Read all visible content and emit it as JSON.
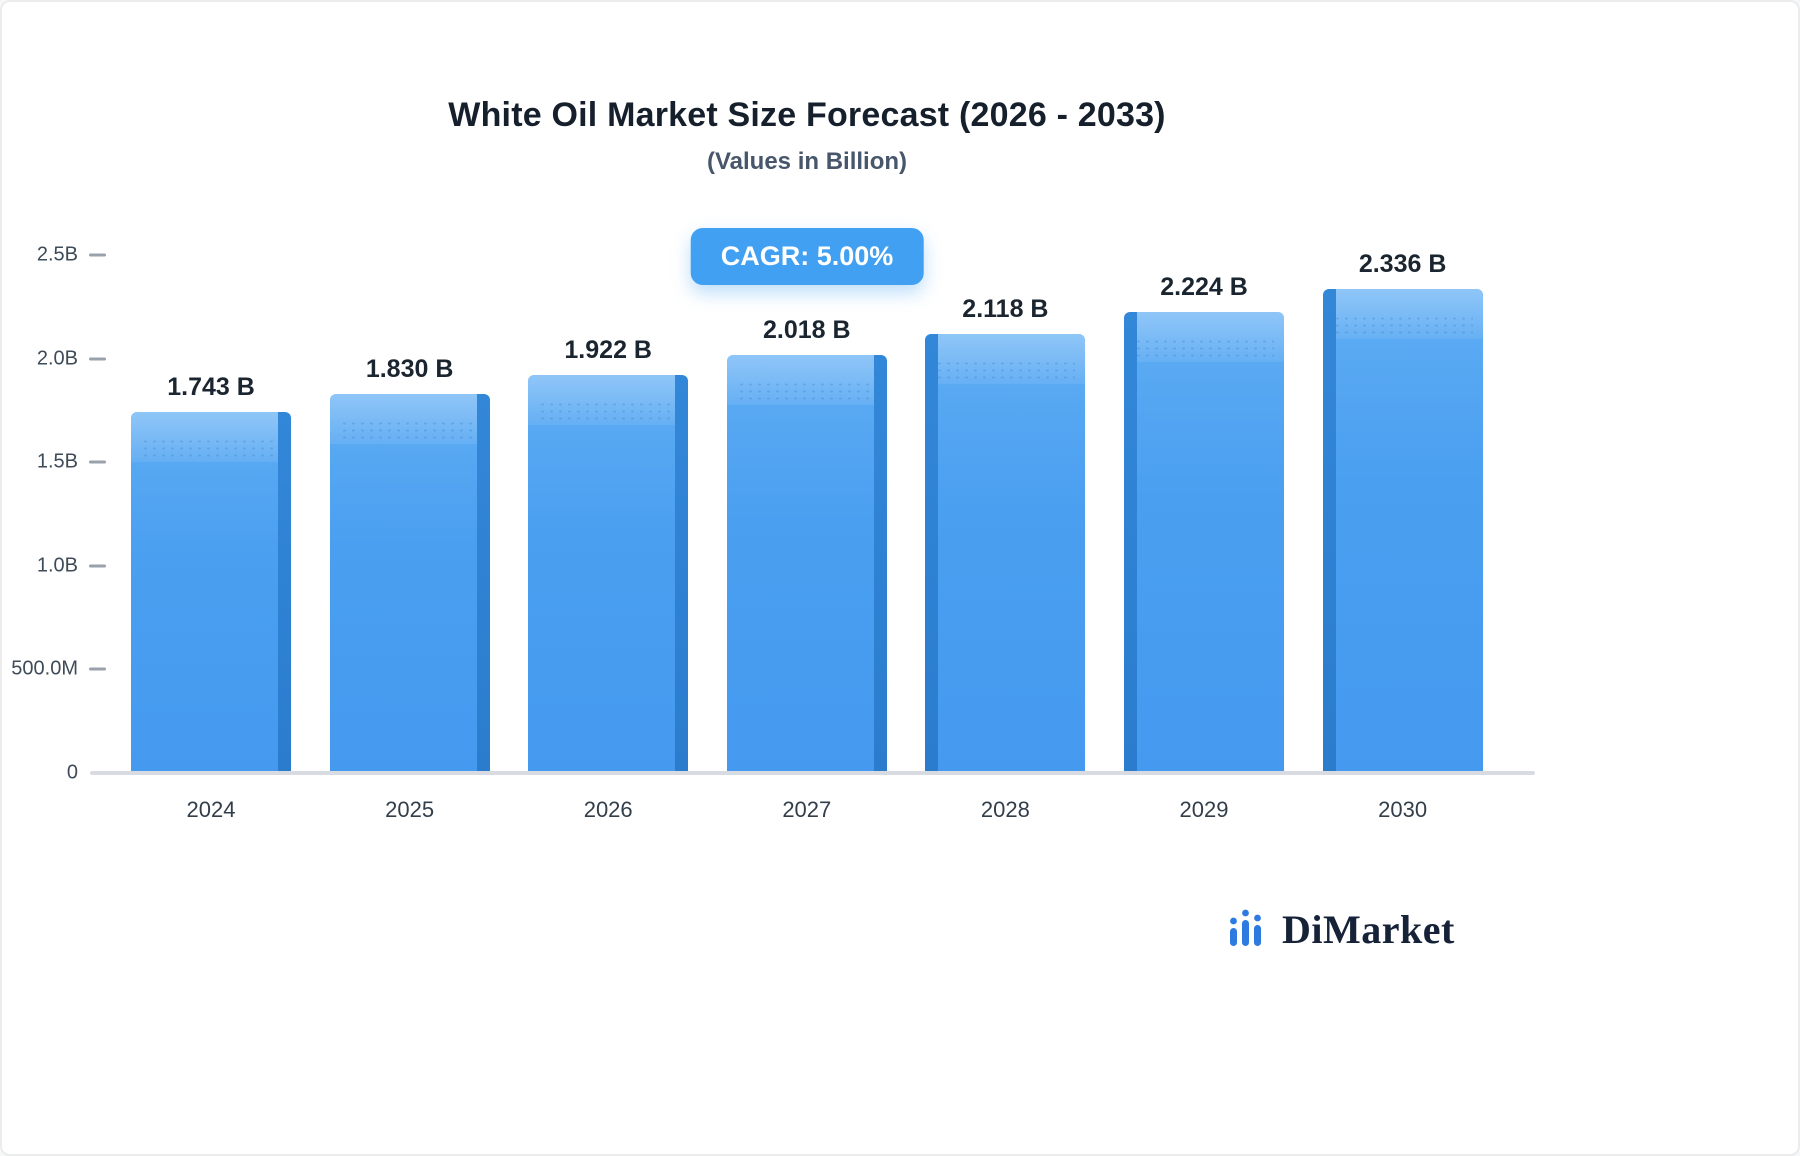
{
  "header": {
    "title": "White Oil Market Size Forecast (2026 - 2033)",
    "subtitle": "(Values in Billion)"
  },
  "badge": {
    "label": "CAGR: 5.00%"
  },
  "chart_data": {
    "type": "bar",
    "title": "White Oil Market Size Forecast (2026 - 2033)",
    "subtitle": "(Values in Billion)",
    "categories": [
      "2024",
      "2025",
      "2026",
      "2027",
      "2028",
      "2029",
      "2030"
    ],
    "values": [
      1.743,
      1.83,
      1.922,
      2.018,
      2.118,
      2.224,
      2.336
    ],
    "value_labels": [
      "1.743 B",
      "1.830 B",
      "1.922 B",
      "2.018 B",
      "2.118 B",
      "2.224 B",
      "2.336 B"
    ],
    "unit": "Billion",
    "xlabel": "",
    "ylabel": "",
    "ylim": [
      0,
      2.5
    ],
    "ytick_values": [
      0,
      0.5,
      1.0,
      1.5,
      2.0,
      2.5
    ],
    "ytick_labels": [
      "0",
      "500.0M",
      "1.0B",
      "1.5B",
      "2.0B",
      "2.5B"
    ],
    "grid": false,
    "legend": false,
    "colors": {
      "bar_face": "#459af0",
      "bar_face_light": "#5fadf4",
      "bar_edge_shade": "#2b7ccd",
      "axis_line": "#d8dce2",
      "axis_text": "#3f4b58"
    }
  },
  "branding": {
    "logo_text": "DiMarket",
    "logo_icon": "bar-chart-logo-icon",
    "logo_icon_color": "#2d7be0",
    "logo_text_color": "#152238"
  },
  "colors": {
    "accent": "#42a0f2",
    "title_text": "#16202c",
    "subtitle_text": "#47566a"
  }
}
